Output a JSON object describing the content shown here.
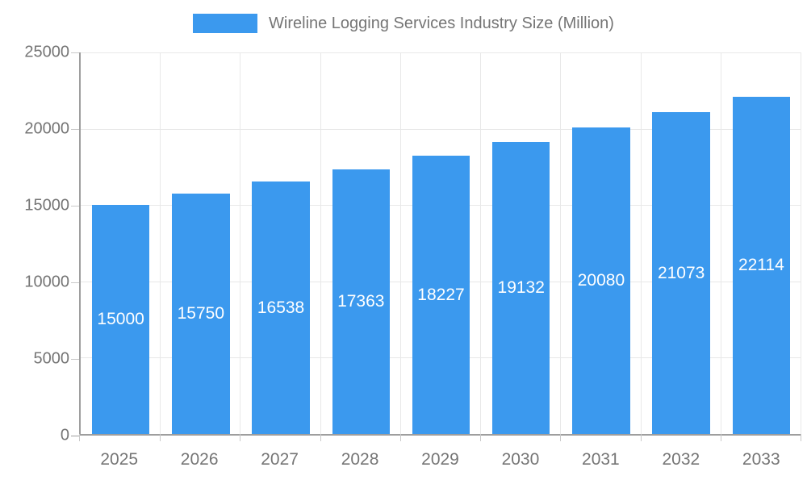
{
  "legend": {
    "swatch_color": "#3B99EE"
  },
  "chart_data": {
    "type": "bar",
    "title": "Wireline Logging Services Industry Size (Million)",
    "categories": [
      "2025",
      "2026",
      "2027",
      "2028",
      "2029",
      "2030",
      "2031",
      "2032",
      "2033"
    ],
    "values": [
      15000,
      15750,
      16538,
      17363,
      18227,
      19132,
      20080,
      21073,
      22114
    ],
    "xlabel": "",
    "ylabel": "",
    "ylim": [
      0,
      25000
    ],
    "yticks": [
      0,
      5000,
      10000,
      15000,
      20000,
      25000
    ],
    "grid": true,
    "legend_position": "top",
    "bar_color": "#3B99EE",
    "bar_label_color": "#FFFFFF",
    "axis_color": "#9E9E9E",
    "grid_color": "#E8E8E8",
    "tick_color": "#C9C9C9",
    "text_color": "#757575",
    "background_color": "#FFFFFF",
    "bar_width_fraction": 0.72
  }
}
